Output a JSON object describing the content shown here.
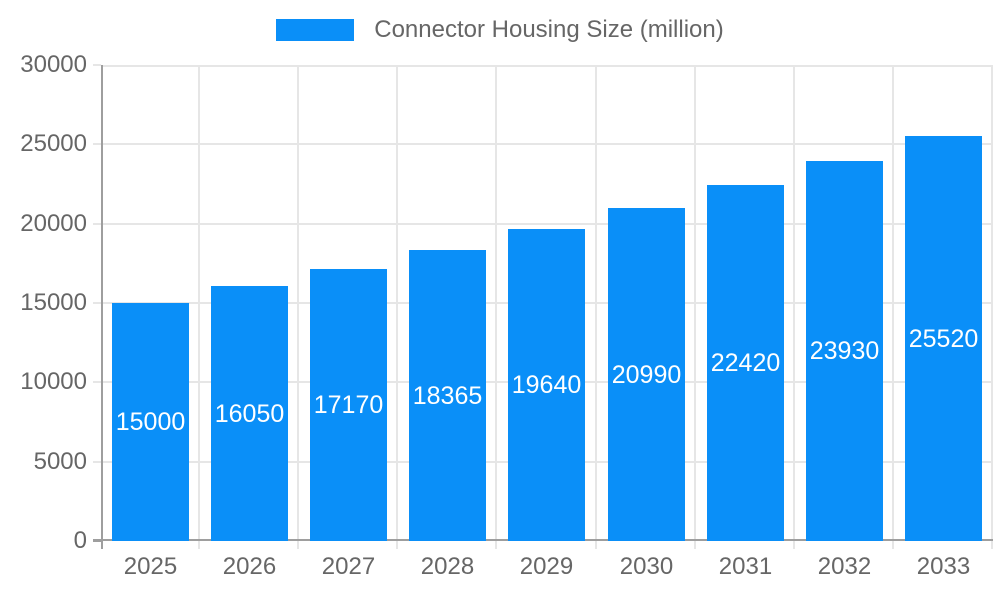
{
  "legend": {
    "label": "Connector Housing Size (million)"
  },
  "chart_data": {
    "type": "bar",
    "title": "",
    "xlabel": "",
    "ylabel": "",
    "series_name": "Connector Housing Size (million)",
    "categories": [
      "2025",
      "2026",
      "2027",
      "2028",
      "2029",
      "2030",
      "2031",
      "2032",
      "2033"
    ],
    "values": [
      15000,
      16050,
      17170,
      18365,
      19640,
      20990,
      22420,
      23930,
      25520
    ],
    "bar_labels": [
      "15000",
      "16050",
      "17170",
      "18365",
      "19640",
      "20990",
      "22420",
      "23930",
      "25520"
    ],
    "ylim": [
      0,
      30000
    ],
    "yticks": [
      0,
      5000,
      10000,
      15000,
      20000,
      25000,
      30000
    ],
    "grid": true,
    "legend_position": "top",
    "colors": {
      "bar": "#0a8ff8",
      "bar_label_text": "#ffffff",
      "axis_text": "#666666",
      "gridline": "#e6e6e6",
      "axis_line": "#9e9e9e",
      "background": "#ffffff"
    }
  }
}
